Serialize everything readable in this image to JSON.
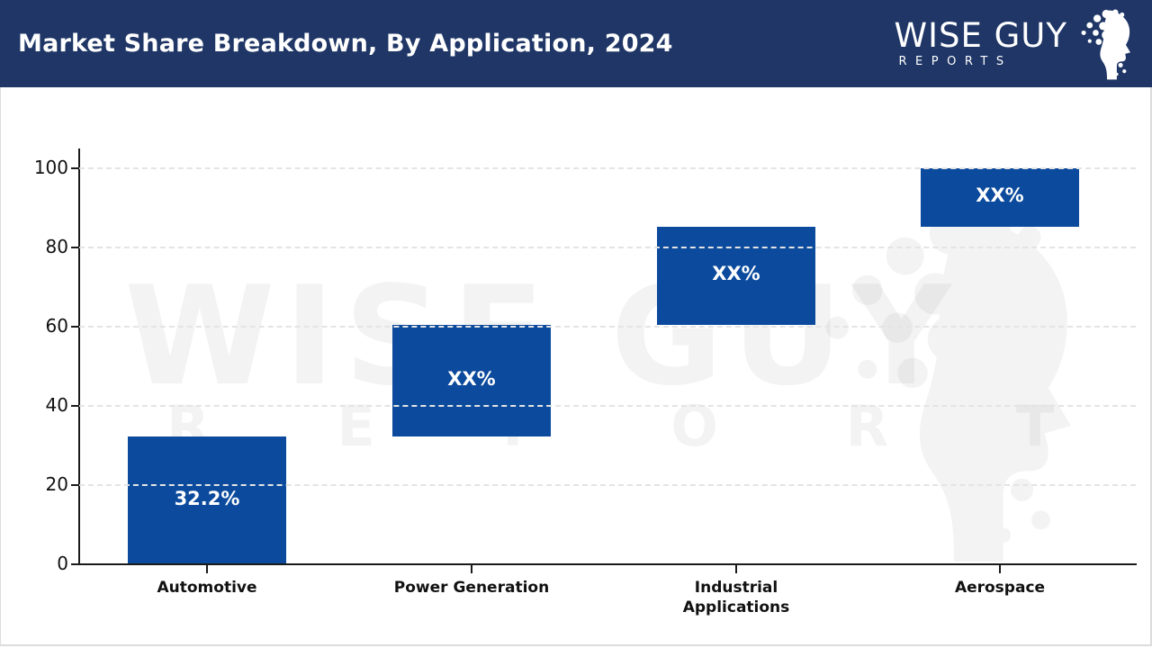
{
  "header": {
    "title": "Market Share Breakdown, By Application, 2024",
    "bg_color": "#1f3666",
    "logo": {
      "line1": "WISE GUY",
      "line2": "REPORTS"
    }
  },
  "watermark": {
    "line1": "WISE GUY",
    "line2": "R E P O R T S"
  },
  "chart_data": {
    "type": "bar",
    "subtype": "waterfall",
    "title": "Market Share Breakdown, By Application, 2024",
    "categories": [
      {
        "label": "Automotive",
        "lines": [
          "Automotive"
        ]
      },
      {
        "label": "Power Generation",
        "lines": [
          "Power Generation"
        ]
      },
      {
        "label": "Industrial Applications",
        "lines": [
          "Industrial",
          "Applications"
        ]
      },
      {
        "label": "Aerospace",
        "lines": [
          "Aerospace"
        ]
      }
    ],
    "segments": [
      {
        "category": "Automotive",
        "label": "32.2%",
        "start": 0,
        "end": 32.2,
        "value": 32.2
      },
      {
        "category": "Power Generation",
        "label": "XX%",
        "start": 32.2,
        "end": 60.5,
        "value": 28.3
      },
      {
        "category": "Industrial Applications",
        "label": "XX%",
        "start": 60.5,
        "end": 85.3,
        "value": 24.8
      },
      {
        "category": "Aerospace",
        "label": "XX%",
        "start": 85.3,
        "end": 100,
        "value": 14.7
      }
    ],
    "yticks": [
      0,
      20,
      40,
      60,
      80,
      100
    ],
    "ylim": [
      0,
      105
    ],
    "xlabel": "",
    "ylabel": "",
    "grid": "dashed-horizontal",
    "legend": "none",
    "bar_color": "#0b4a9c",
    "bar_label_color": "#ffffff",
    "axis_color": "#1a1a1a"
  }
}
